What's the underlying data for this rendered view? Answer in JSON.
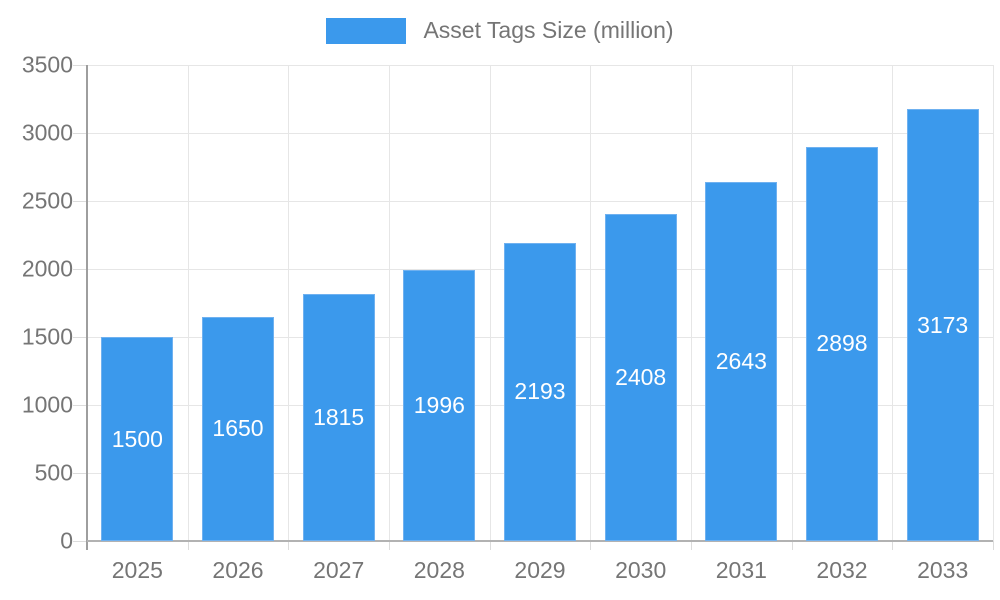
{
  "legend": {
    "label": "Asset Tags Size (million)"
  },
  "colors": {
    "bar": "#3b99ec",
    "bar_edge": "#6fb1f0",
    "grid": "#e6e6e6",
    "axis_y": "#9e9e9e",
    "axis_x": "#b2b2b2",
    "tick": "#dcdcdc",
    "text": "#757575",
    "bar_label": "#ffffff"
  },
  "chart_data": {
    "type": "bar",
    "title": "Asset Tags Size (million)",
    "categories": [
      "2025",
      "2026",
      "2027",
      "2028",
      "2029",
      "2030",
      "2031",
      "2032",
      "2033"
    ],
    "series": [
      {
        "name": "Asset Tags Size (million)",
        "values": [
          1500,
          1650,
          1815,
          1996,
          2193,
          2408,
          2643,
          2898,
          3173
        ]
      }
    ],
    "xlabel": "",
    "ylabel": "",
    "ylim": [
      0,
      3500
    ],
    "yticks": [
      0,
      500,
      1000,
      1500,
      2000,
      2500,
      3000,
      3500
    ],
    "grid": true,
    "legend_position": "top-center",
    "bar_value_labels": "inside-center"
  }
}
